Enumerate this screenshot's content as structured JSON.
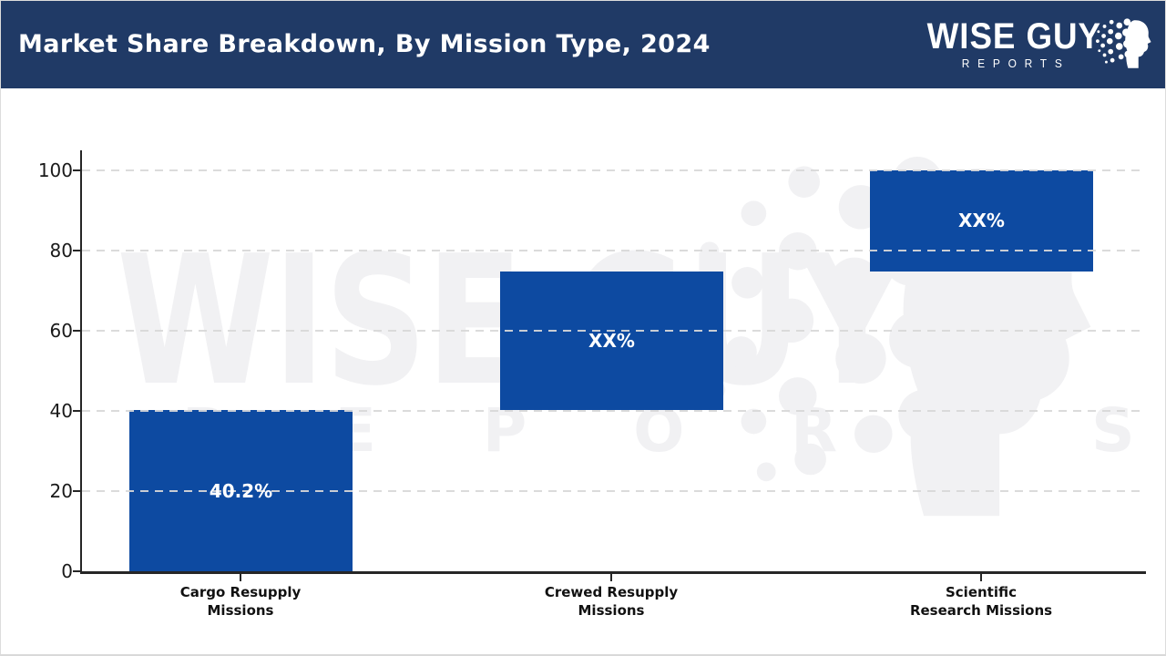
{
  "header": {
    "title": "Market Share Breakdown, By Mission Type, 2024",
    "bg_color": "#203a66",
    "logo": {
      "line1": "WISE GUY",
      "line2": "REPORTS"
    }
  },
  "watermark": {
    "line1": "WISE GUY",
    "line2": "R E P O R T S"
  },
  "chart_data": {
    "type": "bar",
    "variant": "waterfall-stacked-segments",
    "title": "Market Share Breakdown, By Mission Type, 2024",
    "categories": [
      {
        "name": "Cargo Resupply Missions",
        "line1": "Cargo Resupply",
        "line2": "Missions"
      },
      {
        "name": "Crewed Resupply Missions",
        "line1": "Crewed Resupply",
        "line2": "Missions"
      },
      {
        "name": "Scientific Research Missions",
        "line1": "Scientific",
        "line2": "Research Missions"
      }
    ],
    "bars": [
      {
        "category": "Cargo Resupply Missions",
        "from": 0,
        "to": 40.2,
        "label": "40.2%"
      },
      {
        "category": "Crewed Resupply Missions",
        "from": 40.2,
        "to": 74.8,
        "label": "XX%"
      },
      {
        "category": "Scientific Research Missions",
        "from": 74.8,
        "to": 100,
        "label": "XX%"
      }
    ],
    "value_suffix": "%",
    "ylim": [
      0,
      100
    ],
    "ytick_labels": [
      "0",
      "20",
      "40",
      "60",
      "80",
      "100"
    ],
    "xlabel": "",
    "ylabel": "",
    "grid": "horizontal-dashed",
    "grid_color": "#d8d8d8",
    "bar_color": "#0d4aa1",
    "bar_label_color": "#ffffff",
    "axis_color": "#262626"
  }
}
